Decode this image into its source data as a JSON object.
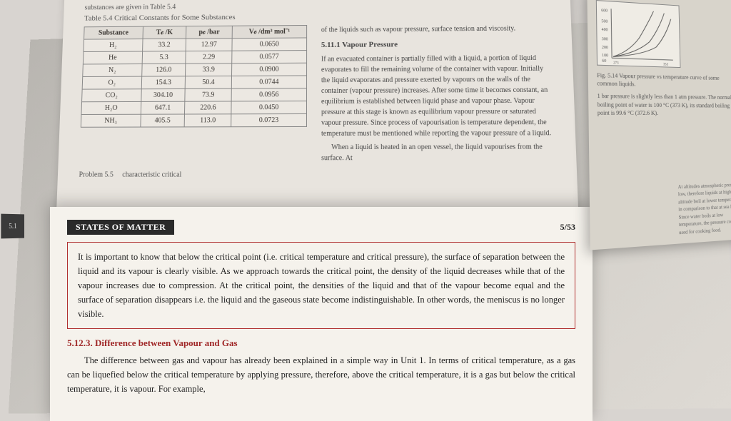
{
  "upper": {
    "intro_fragment": "substances are given in Table 5.4",
    "table_caption": "Table 5.4 Critical Constants for Some Substances",
    "table": {
      "columns": [
        "Substance",
        "T𝒸 /K",
        "p𝒸 /bar",
        "V𝒸 /dm³ mol⁻¹"
      ],
      "rows": [
        [
          "H₂",
          "33.2",
          "12.97",
          "0.0650"
        ],
        [
          "He",
          "5.3",
          "2.29",
          "0.0577"
        ],
        [
          "N₂",
          "126.0",
          "33.9",
          "0.0900"
        ],
        [
          "O₂",
          "154.3",
          "50.4",
          "0.0744"
        ],
        [
          "CO₂",
          "304.10",
          "73.9",
          "0.0956"
        ],
        [
          "H₂O",
          "647.1",
          "220.6",
          "0.0450"
        ],
        [
          "NH₃",
          "405.5",
          "113.0",
          "0.0723"
        ]
      ]
    },
    "right_intro": "of the liquids such as vapour pressure, surface tension and viscosity.",
    "right_heading": "5.11.1 Vapour Pressure",
    "right_body": "If an evacuated container is partially filled with a liquid, a portion of liquid evaporates to fill the remaining volume of the container with vapour. Initially the liquid evaporates and pressure exerted by vapours on the walls of the container (vapour pressure) increases. After some time it becomes constant, an equilibrium is established between liquid phase and vapour phase. Vapour pressure at this stage is known as equilibrium vapour pressure or saturated vapour pressure. Since process of vapourisation is temperature dependent, the temperature must be mentioned while reporting the vapour pressure of a liquid.",
    "right_cont": "When a liquid is heated in an open vessel, the liquid vapourises from the surface. At",
    "problem_ref": "Problem 5.5",
    "char_text": "characteristic critical"
  },
  "lower": {
    "header_label": "STATES OF MATTER",
    "page_num": "5/53",
    "box_text": "It is important to know that below the critical point (i.e. critical temperature and critical pressure), the surface of separation between the liquid and its vapour is clearly visible. As we approach towards the critical point, the density of the liquid decreases while that of the vapour increases due to compression. At the critical point, the densities of the liquid and that of the vapour become equal and the surface of separation disappears i.e. the liquid and the gaseous state become indistinguishable. In other words, the meniscus is no longer visible.",
    "section_heading": "5.12.3. Difference between Vapour and Gas",
    "body": "The difference between gas and vapour has already been explained in a simple way in Unit 1. In terms of critical temperature, as a gas can be liquefied below the critical temperature by applying pressure, therefore, above the critical temperature, it is a gas but below the critical temperature, it is vapour. For example,"
  },
  "right_page": {
    "fig_caption": "Fig. 5.14 Vapour pressure vs temperature curve of some common liquids.",
    "notes": [
      "1 bar pressure is slightly less than 1 atm pressure. The normal boiling point of water is 100 °C (373 K), its standard boiling point is 99.6 °C (372.6 K).",
      "At altitudes atmospheric pressure is low, therefore liquids at high altitude boil at lower temperatures in comparison to that at sea level. Since water boils at low temperature, the pressure cooker is used for cooking food."
    ],
    "chart": {
      "xlim": [
        270,
        350
      ],
      "ylim": [
        0,
        600
      ],
      "yticks": [
        100,
        200,
        300,
        400,
        500,
        600
      ],
      "line_color": "#555",
      "bg": "#efece5"
    }
  },
  "left_tab": "5.1",
  "colors": {
    "box_border": "#b03030",
    "heading": "#a02828",
    "header_bg": "#2a2a2a"
  }
}
